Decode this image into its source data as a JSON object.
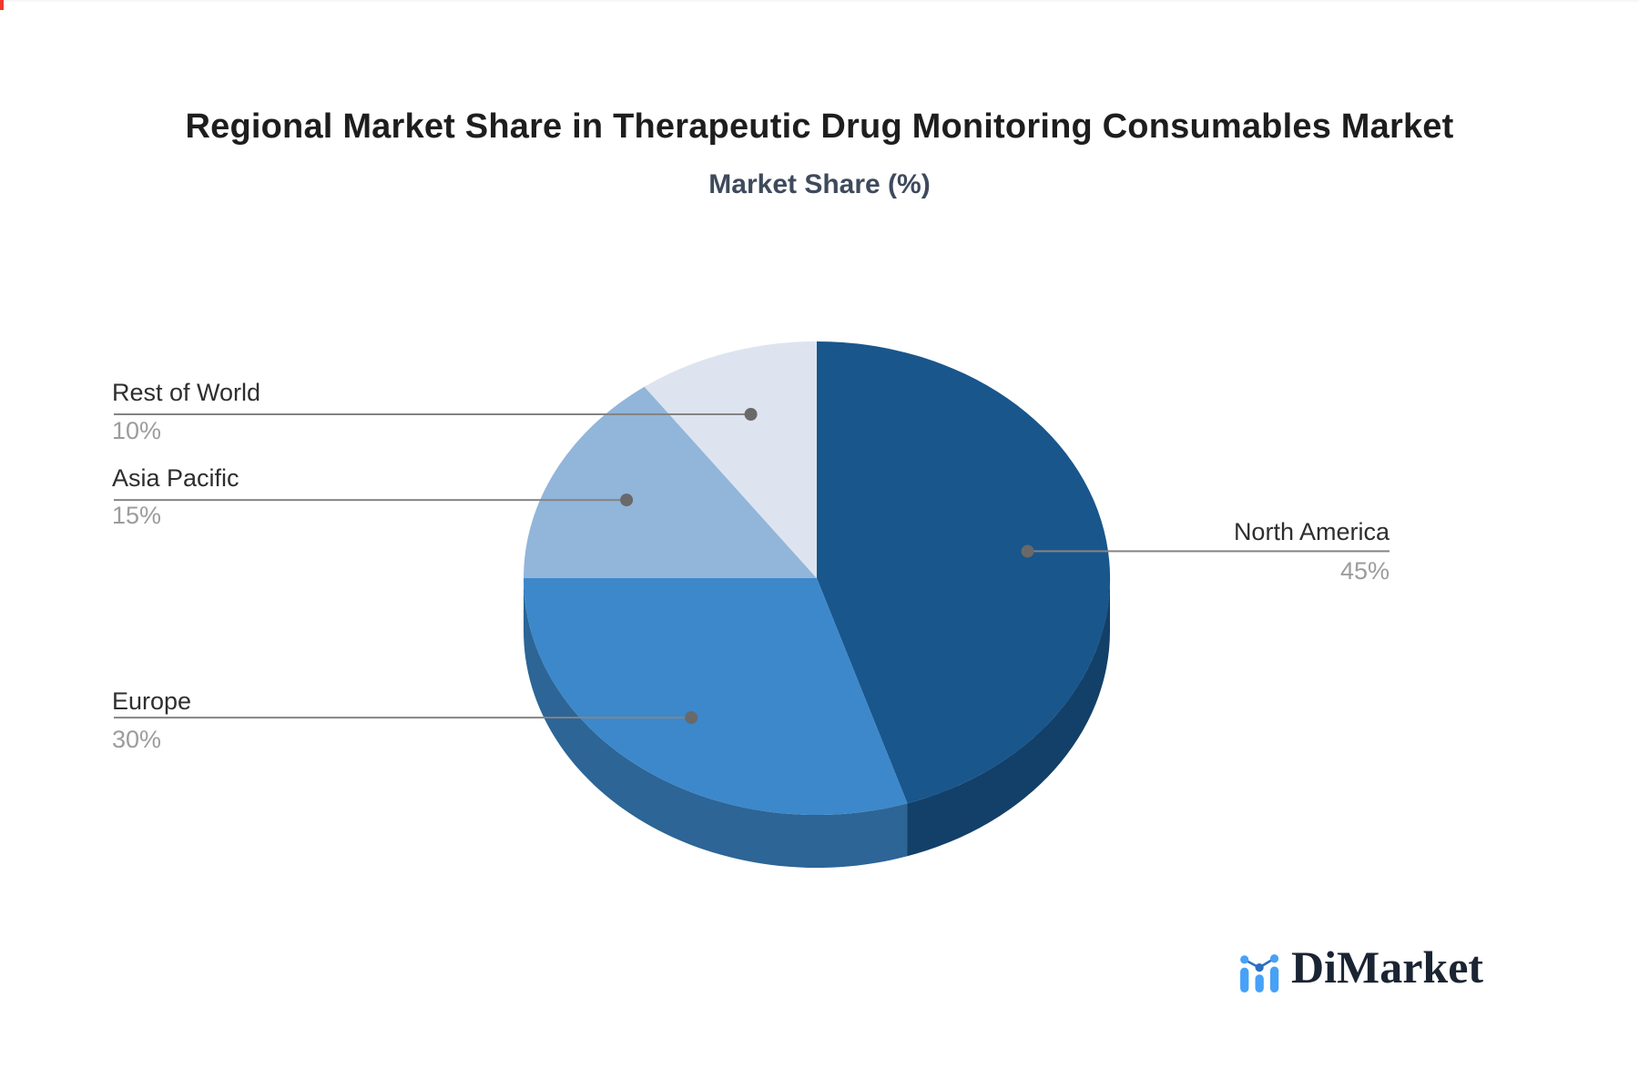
{
  "title": "Regional Market Share in Therapeutic Drug Monitoring Consumables Market",
  "subtitle": "Market Share (%)",
  "brand": {
    "name": "DiMarket",
    "icon": "bar-line-chart-icon"
  },
  "colors": {
    "background": "#ffffff",
    "title_text": "#1e1e1e",
    "subtitle_text": "#3e4a5c",
    "label_text": "#2e2e2e",
    "percent_text": "#9c9c9c",
    "leader_line": "#848484",
    "leader_dot": "#696969",
    "logo_text": "#1a2433",
    "logo_accent": "#47a1f7",
    "logo_accent_dark": "#2d6fc1"
  },
  "chart_data": {
    "type": "pie",
    "title": "Regional Market Share in Therapeutic Drug Monitoring Consumables Market",
    "subtitle": "Market Share (%)",
    "unit": "%",
    "style": "3d",
    "direction": "clockwise",
    "start_angle_deg": 0,
    "legend_position": "callout-lines",
    "slices": [
      {
        "label": "North America",
        "value": 45,
        "display": "45%",
        "color": "#19568C"
      },
      {
        "label": "Europe",
        "value": 30,
        "display": "30%",
        "color": "#3C88CB"
      },
      {
        "label": "Asia Pacific",
        "value": 15,
        "display": "15%",
        "color": "#92B5DA"
      },
      {
        "label": "Rest of World",
        "value": 10,
        "display": "10%",
        "color": "#DDE4EF"
      }
    ]
  }
}
